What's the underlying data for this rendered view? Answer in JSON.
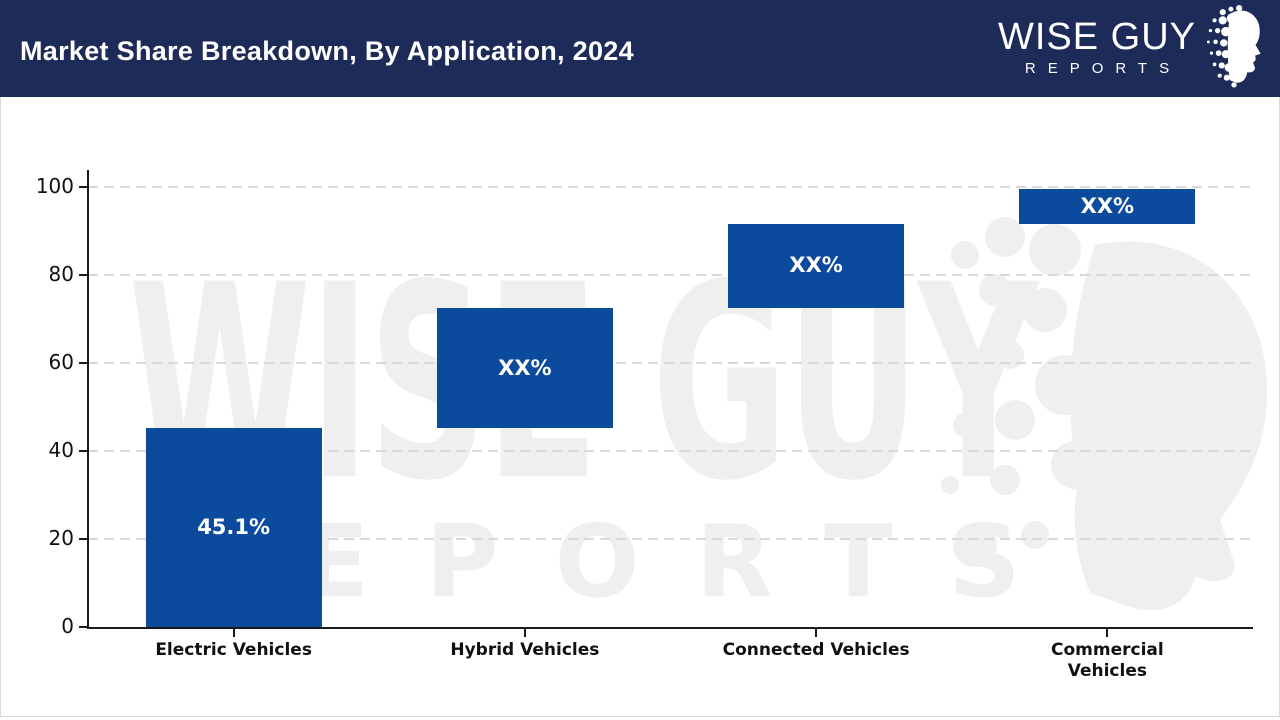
{
  "header": {
    "title": "Market Share Breakdown, By Application, 2024",
    "bg_color": "#1c2b57",
    "logo": {
      "line1": "WISE GUY",
      "line2": "REPORTS"
    }
  },
  "watermark": {
    "line1": "WISE GUY",
    "line2": "REPORTS"
  },
  "chart_data": {
    "type": "bar",
    "subtype": "waterfall",
    "title": "Market Share Breakdown, By Application, 2024",
    "categories": [
      "Electric Vehicles",
      "Hybrid Vehicles",
      "Connected Vehicles",
      "Commercial Vehicles"
    ],
    "category_lines": [
      [
        "Electric Vehicles"
      ],
      [
        "Hybrid Vehicles"
      ],
      [
        "Connected Vehicles"
      ],
      [
        "Commercial",
        "Vehicles"
      ]
    ],
    "segments": [
      {
        "category": "Electric Vehicles",
        "start": 0,
        "end": 45.1,
        "label": "45.1%"
      },
      {
        "category": "Hybrid Vehicles",
        "start": 45.1,
        "end": 72.5,
        "label": "XX%"
      },
      {
        "category": "Connected Vehicles",
        "start": 72.5,
        "end": 91.5,
        "label": "XX%"
      },
      {
        "category": "Commercial Vehicles",
        "start": 91.5,
        "end": 99.5,
        "label": "XX%"
      }
    ],
    "yticks": [
      0,
      20,
      40,
      60,
      80,
      100
    ],
    "ylim": [
      0,
      103.7
    ],
    "xlabel": "",
    "ylabel": "",
    "grid": "horizontal-dashed",
    "legend": "none",
    "colors": {
      "bar": "#0c4a9e",
      "bar_label": "#ffffff",
      "axis": "#1a1a1a",
      "gridline": "#d9d9d9",
      "tick_label": "#111111",
      "header_bg": "#1c2b57",
      "watermark": "#efefef"
    }
  }
}
